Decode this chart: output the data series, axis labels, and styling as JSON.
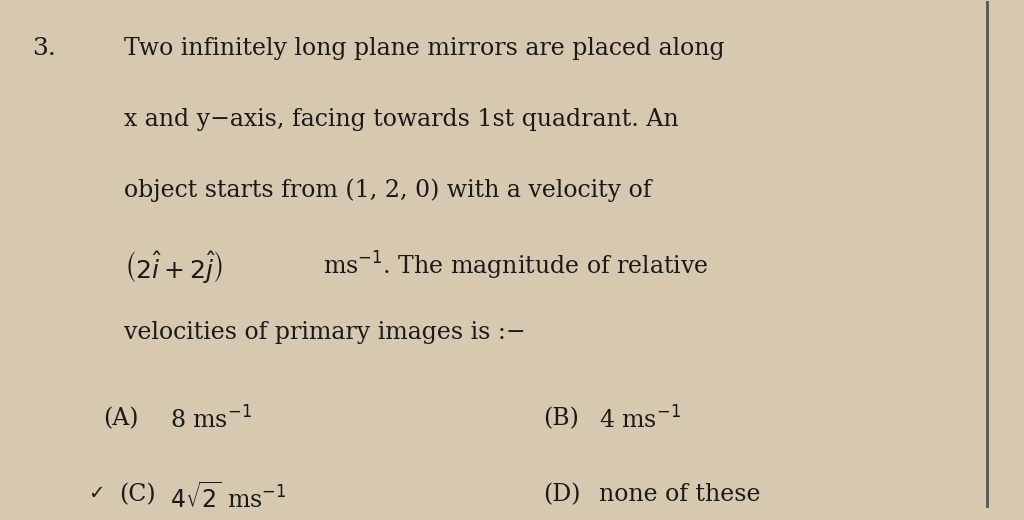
{
  "background_color": "#d6c9b0",
  "text_color": "#1a1a1a",
  "figsize": [
    10.24,
    5.2
  ],
  "dpi": 100,
  "question_number": "3.",
  "line1": "Two infinitely long plane mirrors are placed along",
  "line2": "x and y−axis, facing towards 1st quadrant. An",
  "line3": "object starts from (1, 2, 0) with a velocity of",
  "line4_pre": "ms",
  "line4_post": ". The magnitude of relative",
  "line5": "velocities of primary images is :−",
  "optA_label": "(A)",
  "optA_val": "8 ms",
  "optA_exp": "−1",
  "optB_label": "(B)",
  "optB_val": "4 ms",
  "optB_exp": "−1",
  "optC_label": "(C)",
  "optC_val_pre": "4",
  "optC_val_sqrt": "2",
  "optC_val_post": " ms",
  "optC_exp": "−1",
  "optD_label": "(D)",
  "optD_val": "none of these",
  "checkmark_color": "#1a1a1a",
  "font_size_main": 17,
  "font_size_options": 17,
  "font_size_number": 18
}
